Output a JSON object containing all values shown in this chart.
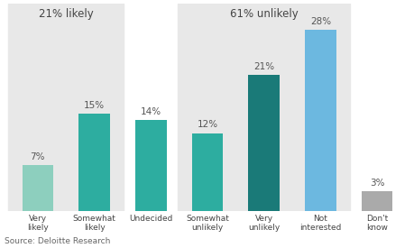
{
  "categories": [
    "Very\nlikely",
    "Somewhat\nlikely",
    "Undecided",
    "Somewhat\nunlikely",
    "Very\nunlikely",
    "Not\ninterested",
    "Don't\nknow"
  ],
  "values": [
    7,
    15,
    14,
    12,
    21,
    28,
    3
  ],
  "labels": [
    "7%",
    "15%",
    "14%",
    "12%",
    "21%",
    "28%",
    "3%"
  ],
  "colors": [
    "#8DCFBE",
    "#2DADA0",
    "#2DADA0",
    "#2DADA0",
    "#1A7A78",
    "#6CB8E0",
    "#AAAAAA"
  ],
  "source_text": "Source: Deloitte Research",
  "ylim": [
    0,
    32
  ],
  "label_color": "#555555",
  "title_color": "#444444",
  "bg_color": "#E8E8E8",
  "group1_label": "21% likely",
  "group2_label": "61% unlikely",
  "group1_xspan": [
    -0.52,
    1.52
  ],
  "group2_xspan": [
    2.48,
    5.52
  ],
  "xlim": [
    -0.6,
    6.6
  ]
}
